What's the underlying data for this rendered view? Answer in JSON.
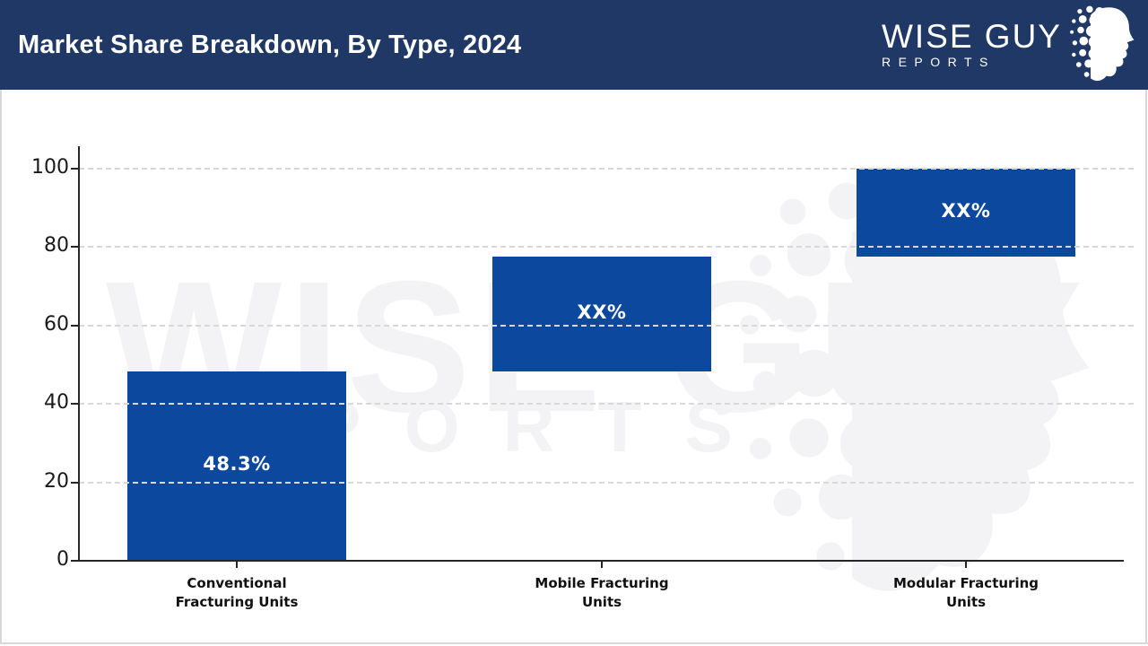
{
  "header": {
    "title": "Market Share Breakdown, By Type, 2024",
    "bg_color": "#1f3866",
    "logo": {
      "line1": "WISE GUY",
      "line2": "REPORTS"
    }
  },
  "watermark": {
    "line1": "WISE GUY",
    "line2": "REPORTS"
  },
  "chart_data": {
    "type": "bar",
    "variant": "waterfall-stacked-percentage",
    "title": "Market Share Breakdown, By Type, 2024",
    "categories": [
      "Conventional Fracturing Units",
      "Mobile Fracturing Units",
      "Modular Fracturing Units"
    ],
    "categories_lines": [
      [
        "Conventional",
        "Fracturing Units"
      ],
      [
        "Mobile Fracturing",
        "Units"
      ],
      [
        "Modular Fracturing",
        "Units"
      ]
    ],
    "segments": [
      {
        "start": 0,
        "end": 48.3,
        "label": "48.3%"
      },
      {
        "start": 48.3,
        "end": 77.6,
        "label": "XX%"
      },
      {
        "start": 77.6,
        "end": 100,
        "label": "XX%"
      }
    ],
    "values": [
      48.3,
      29.3,
      22.4
    ],
    "unit": "%",
    "xlabel": "",
    "ylabel": "",
    "ylim": [
      0,
      100
    ],
    "yticks": [
      0,
      20,
      40,
      60,
      80,
      100
    ],
    "grid": {
      "horizontal": true,
      "style": "dashed",
      "color": "#d8d8d8",
      "above_bars": true
    },
    "legend": false,
    "bar_color": "#0d489f",
    "bar_label_color": "#ffffff",
    "axis_color": "#262626",
    "tick_label_color": "#1a1a1a"
  }
}
